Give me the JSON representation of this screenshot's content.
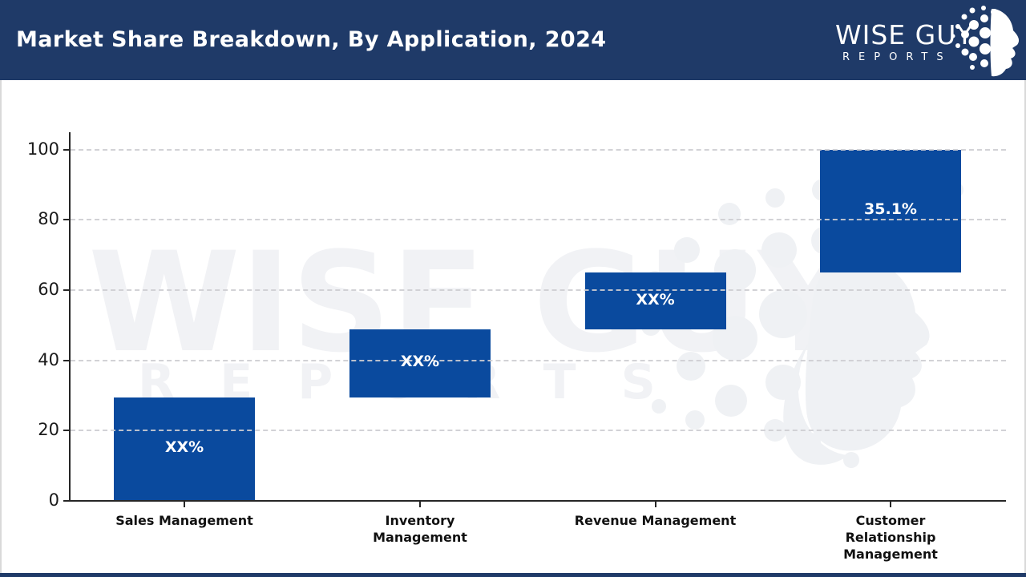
{
  "header": {
    "title": "Market Share Breakdown, By Application, 2024",
    "bg_color": "#1f3a68",
    "logo": {
      "name": "WISE GUY",
      "subtitle": "REPORTS"
    }
  },
  "watermark": {
    "line1": "WISE GUY",
    "line2": "REPORTS"
  },
  "bottom_strip_color": "#1f3a68",
  "chart_data": {
    "type": "bar",
    "subtype": "floating cumulative segments (waterfall-style market share)",
    "title": "Market Share Breakdown, By Application, 2024",
    "categories": [
      "Sales Management",
      "Inventory Management",
      "Revenue Management",
      "Customer Relationship Management"
    ],
    "category_label_lines": [
      [
        "Sales Management"
      ],
      [
        "Inventory",
        "Management"
      ],
      [
        "Revenue Management"
      ],
      [
        "Customer",
        "Relationship",
        "Management"
      ]
    ],
    "segments": [
      {
        "category": "Sales Management",
        "from": 0,
        "to": 29.5,
        "label": "XX%"
      },
      {
        "category": "Inventory Management",
        "from": 29.5,
        "to": 48.8,
        "label": "XX%"
      },
      {
        "category": "Revenue Management",
        "from": 48.8,
        "to": 64.9,
        "label": "XX%"
      },
      {
        "category": "Customer Relationship Management",
        "from": 64.9,
        "to": 100,
        "label": "35.1%"
      }
    ],
    "yticks": [
      0,
      20,
      40,
      60,
      80,
      100
    ],
    "ylim": [
      0,
      100
    ],
    "xlabel": "",
    "ylabel": "",
    "legend": "none",
    "grid": "horizontal dashed, drawn over bars",
    "bar_color": "#0a4a9e",
    "bar_label_color": "#ffffff",
    "axis_color": "#262626",
    "gridline_color": "#d5d5d8"
  }
}
